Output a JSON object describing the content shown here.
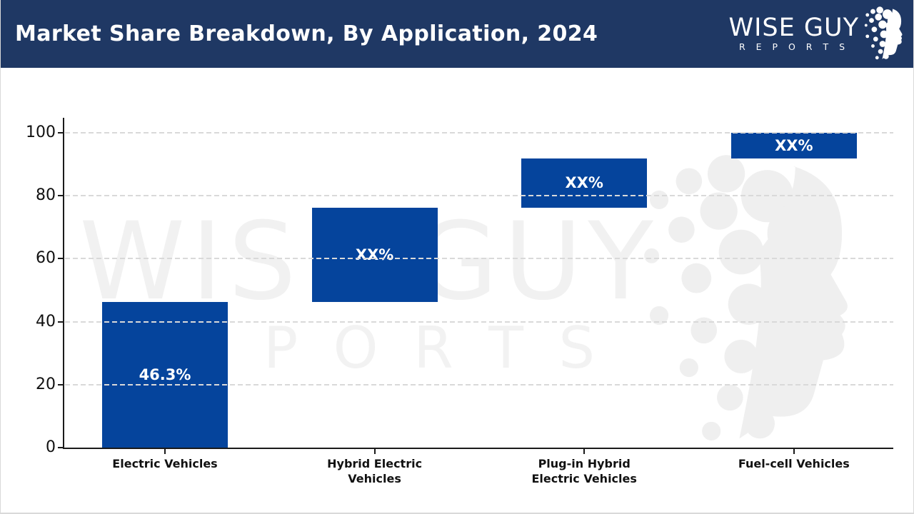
{
  "header": {
    "title": "Market Share Breakdown, By Application, 2024",
    "logo": {
      "name": "WISE GUY",
      "subtitle": "R E P O R T S"
    }
  },
  "watermark": {
    "line1": "WISE GUY",
    "line2": "P O R T S"
  },
  "colors": {
    "header_background": "#1f3864",
    "bar_blue": "#05449c",
    "grid_gray": "#d9d9d9",
    "axis_black": "#1a1a1a",
    "bar_label_white": "#ffffff",
    "watermark_gray": "#f1f1f1"
  },
  "chart_data": {
    "type": "bar",
    "subtype": "waterfall",
    "title": "Market Share Breakdown, By Application, 2024",
    "categories": [
      "Electric Vehicles",
      "Hybrid Electric\nVehicles",
      "Plug-in Hybrid\nElectric Vehicles",
      "Fuel-cell Vehicles"
    ],
    "segments": [
      {
        "start": 0,
        "end": 46.3,
        "label": "46.3%"
      },
      {
        "start": 46.3,
        "end": 76.3,
        "label": "XX%"
      },
      {
        "start": 76.3,
        "end": 91.9,
        "label": "XX%"
      },
      {
        "start": 91.9,
        "end": 100,
        "label": "XX%"
      }
    ],
    "yticks": [
      0,
      20,
      40,
      60,
      80,
      100
    ],
    "ylim": [
      0,
      105
    ],
    "xlabel": "",
    "ylabel": "",
    "grid": "horizontal-dashed",
    "legend": "none"
  }
}
